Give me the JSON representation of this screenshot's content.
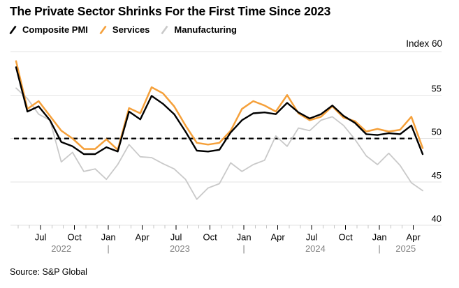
{
  "chart_data": {
    "type": "line",
    "title": "The Private Sector Shrinks For the First Time Since 2023",
    "source_note": "Source: S&P Global",
    "axis_top_label": "Index 60",
    "legend_position": "top-left",
    "grid": true,
    "grid_color": "#e3e3e3",
    "minor_tick_color": "#c4c4c4",
    "year_label_color": "#828282",
    "baseline_value": 50,
    "ylim": [
      40,
      60
    ],
    "yticks": [
      60,
      55,
      50,
      45,
      40
    ],
    "ytick_labels_right": [
      "55",
      "50",
      "45",
      "40"
    ],
    "x_monthly": [
      "Apr 2022",
      "May 2022",
      "Jun 2022",
      "Jul 2022",
      "Aug 2022",
      "Sep 2022",
      "Oct 2022",
      "Nov 2022",
      "Dec 2022",
      "Jan 2023",
      "Feb 2023",
      "Mar 2023",
      "Apr 2023",
      "May 2023",
      "Jun 2023",
      "Jul 2023",
      "Aug 2023",
      "Sep 2023",
      "Oct 2023",
      "Nov 2023",
      "Dec 2023",
      "Jan 2024",
      "Feb 2024",
      "Mar 2024",
      "Apr 2024",
      "May 2024",
      "Jun 2024",
      "Jul 2024",
      "Aug 2024",
      "Sep 2024",
      "Oct 2024",
      "Nov 2024",
      "Dec 2024",
      "Jan 2025",
      "Feb 2025",
      "Mar 2025",
      "Apr 2025"
    ],
    "xtick_major": [
      {
        "label": "Jul",
        "i": 3
      },
      {
        "label": "Oct",
        "i": 6
      },
      {
        "label": "Jan",
        "i": 9
      },
      {
        "label": "Apr",
        "i": 12
      },
      {
        "label": "Jul",
        "i": 15
      },
      {
        "label": "Oct",
        "i": 18
      },
      {
        "label": "Jan",
        "i": 21
      },
      {
        "label": "Apr",
        "i": 24
      },
      {
        "label": "Jul",
        "i": 27
      },
      {
        "label": "Oct",
        "i": 30
      },
      {
        "label": "Jan",
        "i": 33
      },
      {
        "label": "Apr",
        "i": 36
      }
    ],
    "year_labels": [
      {
        "label": "2022",
        "from": 0,
        "to": 8
      },
      {
        "label": "2023",
        "from": 9,
        "to": 20
      },
      {
        "label": "2024",
        "from": 21,
        "to": 32
      },
      {
        "label": "2025",
        "from": 33,
        "to": 36
      }
    ],
    "year_separator_glyph": "|",
    "year_separators": [
      9,
      21,
      33
    ],
    "series": [
      {
        "name": "Composite PMI",
        "color": "#000000",
        "width": 2.4,
        "values": [
          58.2,
          53.1,
          53.7,
          52.1,
          49.6,
          49.1,
          48.2,
          48.2,
          49.0,
          48.5,
          53.1,
          52.2,
          54.9,
          54.0,
          52.8,
          50.8,
          48.6,
          48.5,
          48.7,
          50.7,
          52.1,
          52.9,
          53.0,
          52.8,
          54.1,
          53.0,
          52.3,
          52.8,
          53.8,
          52.6,
          51.8,
          50.5,
          50.4,
          50.6,
          50.5,
          51.5,
          48.2
        ]
      },
      {
        "name": "Services",
        "color": "#F5A03A",
        "width": 2.5,
        "values": [
          58.9,
          53.4,
          54.3,
          52.6,
          50.9,
          50.0,
          48.8,
          48.8,
          49.9,
          48.7,
          53.5,
          52.9,
          55.9,
          55.2,
          53.7,
          51.5,
          49.5,
          49.3,
          49.5,
          50.9,
          53.4,
          54.3,
          53.8,
          53.1,
          55.0,
          52.9,
          52.1,
          52.5,
          53.7,
          52.4,
          52.0,
          50.8,
          51.1,
          50.8,
          51.0,
          52.5,
          48.9
        ]
      },
      {
        "name": "Manufacturing",
        "color": "#C9C9C9",
        "width": 1.8,
        "values": [
          55.8,
          54.6,
          52.8,
          52.1,
          47.3,
          48.4,
          46.2,
          46.5,
          45.3,
          47.0,
          49.3,
          47.9,
          47.8,
          47.1,
          46.5,
          45.3,
          43.0,
          44.3,
          44.8,
          47.2,
          46.2,
          47.0,
          47.5,
          50.3,
          49.1,
          51.2,
          50.9,
          52.1,
          52.5,
          51.5,
          49.9,
          48.0,
          47.0,
          48.3,
          46.9,
          44.9,
          44.0
        ]
      }
    ]
  }
}
